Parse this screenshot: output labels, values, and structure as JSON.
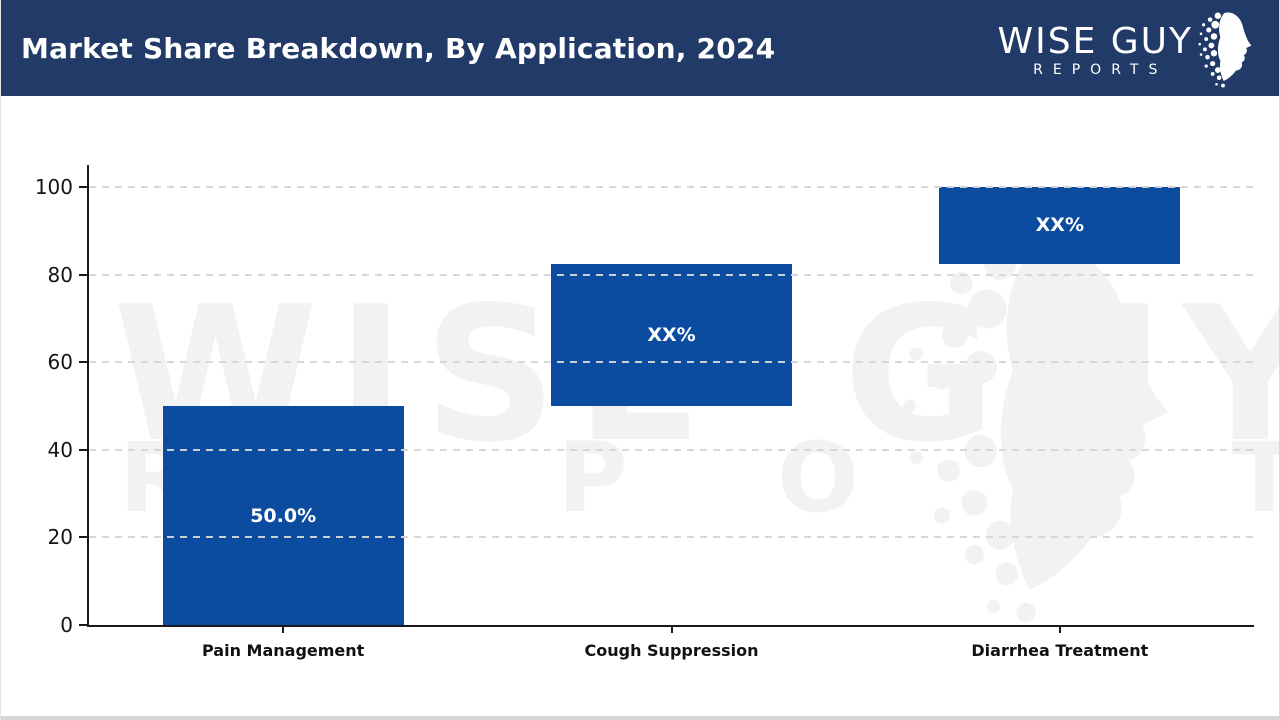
{
  "header": {
    "title": "Market Share Breakdown, By Application, 2024",
    "bg_color": "#213A67",
    "logo": {
      "line1": "WISE GUY",
      "line2": "REPORTS"
    }
  },
  "watermark": {
    "line1": "WISE GUY",
    "line2": "R E P O R T S",
    "color": "#f2f2f2"
  },
  "chart_data": {
    "type": "bar",
    "subtype": "floating-waterfall",
    "title": "Market Share Breakdown, By Application, 2024",
    "categories": [
      "Pain Management",
      "Cough Suppression",
      "Diarrhea Treatment"
    ],
    "segments": [
      {
        "category": "Pain Management",
        "start": 0,
        "end": 50,
        "label": "50.0%"
      },
      {
        "category": "Cough Suppression",
        "start": 50,
        "end": 82.5,
        "label": "XX%"
      },
      {
        "category": "Diarrhea Treatment",
        "start": 82.5,
        "end": 100,
        "label": "XX%"
      }
    ],
    "xlabel": "",
    "ylabel": "",
    "ylim": [
      0,
      100
    ],
    "yticks": [
      0,
      20,
      40,
      60,
      80,
      100
    ],
    "grid": "horizontal-dashed",
    "bar_color": "#0B4BA0",
    "bar_label_color": "#ffffff",
    "axis_color": "#1a1a1a",
    "legend": "none"
  }
}
